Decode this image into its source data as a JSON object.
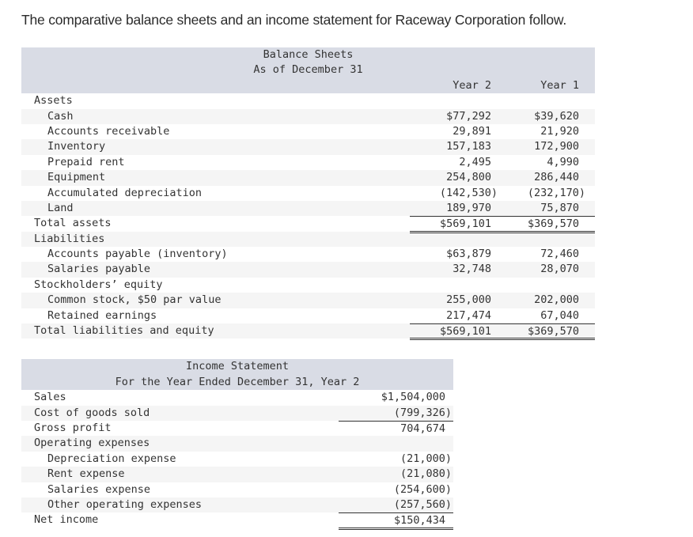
{
  "page": {
    "intro": "The comparative balance sheets and an income statement for Raceway Corporation follow."
  },
  "colors": {
    "header_bg": "#d9dce5",
    "row_stripe": "#f5f5f5",
    "text": "#333333",
    "rule": "#333333"
  },
  "balance_sheet": {
    "title": "Balance Sheets",
    "subtitle": "As of December 31",
    "columns": {
      "year2": "Year 2",
      "year1": "Year 1"
    },
    "rows": [
      {
        "label": "Assets",
        "year2": "",
        "year1": ""
      },
      {
        "label": "Cash",
        "year2": "$77,292",
        "year1": "$39,620"
      },
      {
        "label": "Accounts receivable",
        "year2": "29,891",
        "year1": "21,920"
      },
      {
        "label": "Inventory",
        "year2": "157,183",
        "year1": "172,900"
      },
      {
        "label": "Prepaid rent",
        "year2": "2,495",
        "year1": "4,990"
      },
      {
        "label": "Equipment",
        "year2": "254,800",
        "year1": "286,440"
      },
      {
        "label": "Accumulated depreciation",
        "year2": "(142,530)",
        "year1": "(232,170)"
      },
      {
        "label": "Land",
        "year2": "189,970",
        "year1": "75,870"
      },
      {
        "label": "Total assets",
        "year2": "$569,101",
        "year1": "$369,570"
      },
      {
        "label": "Liabilities",
        "year2": "",
        "year1": ""
      },
      {
        "label": "Accounts payable (inventory)",
        "year2": "$63,879",
        "year1": "72,460"
      },
      {
        "label": "Salaries payable",
        "year2": "32,748",
        "year1": "28,070"
      },
      {
        "label": "Stockholders’ equity",
        "year2": "",
        "year1": ""
      },
      {
        "label": "Common stock, $50 par value",
        "year2": "255,000",
        "year1": "202,000"
      },
      {
        "label": "Retained earnings",
        "year2": "217,474",
        "year1": "67,040"
      },
      {
        "label": "Total liabilities and equity",
        "year2": "$569,101",
        "year1": "$369,570"
      }
    ]
  },
  "income_statement": {
    "title": "Income Statement",
    "subtitle": "For the Year Ended December 31, Year 2",
    "rows": [
      {
        "label": "Sales",
        "amount": "$1,504,000"
      },
      {
        "label": "Cost of goods sold",
        "amount": "(799,326)"
      },
      {
        "label": "Gross profit",
        "amount": "704,674"
      },
      {
        "label": "Operating expenses",
        "amount": ""
      },
      {
        "label": "Depreciation expense",
        "amount": "(21,000)"
      },
      {
        "label": "Rent expense",
        "amount": "(21,080)"
      },
      {
        "label": "Salaries expense",
        "amount": "(254,600)"
      },
      {
        "label": "Other operating expenses",
        "amount": "(257,560)"
      },
      {
        "label": "Net income",
        "amount": "$150,434"
      }
    ]
  }
}
